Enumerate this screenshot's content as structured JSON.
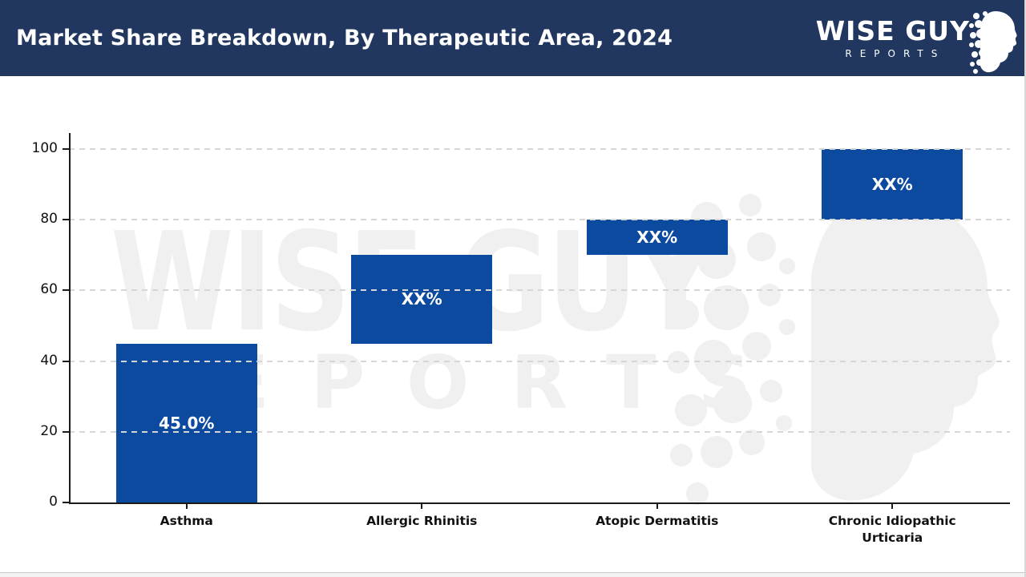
{
  "header": {
    "title": "Market Share Breakdown, By Therapeutic Area, 2024",
    "logo": {
      "brand_top": "WISE GUY",
      "brand_bottom": "REPORTS"
    }
  },
  "watermark": {
    "line1": "WISE GUY",
    "line2": "REPORTS"
  },
  "colors": {
    "header_navy": "#21375f",
    "bar_blue": "#0c4aa0",
    "grid_gray": "#d6d6d6",
    "watermark_gray": "#f0f0f0",
    "axis_black": "#1a1a1a"
  },
  "chart_data": {
    "type": "bar",
    "variant": "waterfall",
    "title": "Market Share Breakdown, By Therapeutic Area, 2024",
    "categories": [
      "Asthma",
      "Allergic Rhinitis",
      "Atopic Dermatitis",
      "Chronic Idiopathic Urticaria"
    ],
    "segments": [
      {
        "category": "Asthma",
        "start": 0,
        "end": 45,
        "label": "45.0%"
      },
      {
        "category": "Allergic Rhinitis",
        "start": 45,
        "end": 70,
        "label": "XX%"
      },
      {
        "category": "Atopic Dermatitis",
        "start": 70,
        "end": 80,
        "label": "XX%"
      },
      {
        "category": "Chronic Idiopathic Urticaria",
        "start": 80,
        "end": 100,
        "label": "XX%"
      }
    ],
    "y_ticks": [
      0,
      20,
      40,
      60,
      80,
      100
    ],
    "ylim": [
      0,
      100
    ],
    "xlabel": "",
    "ylabel": "",
    "grid": "horizontal-dashed-over-bars",
    "legend": "none",
    "bar_color": "#0c4aa0",
    "bar_label_color": "#ffffff"
  }
}
